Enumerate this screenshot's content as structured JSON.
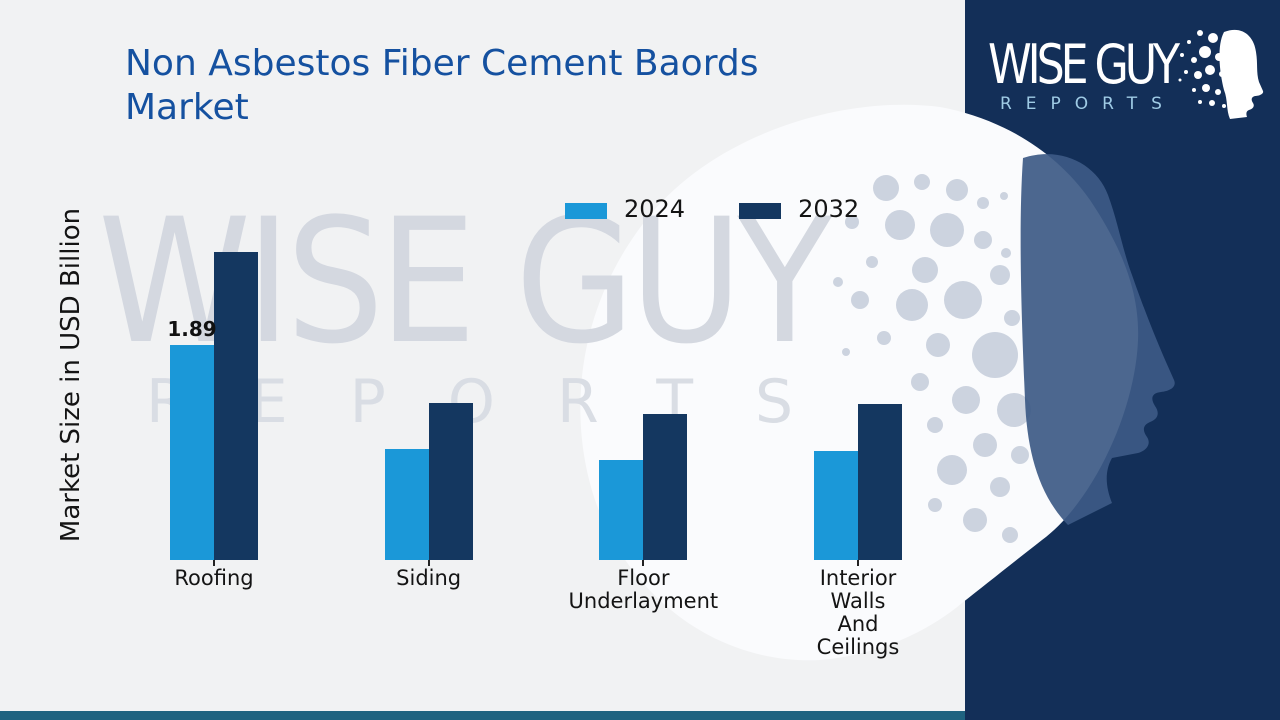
{
  "title": {
    "line1": "Non Asbestos Fiber Cement Baords",
    "line2": "Market"
  },
  "logo": {
    "brand": "WISE GUY",
    "sub": "REPORTS"
  },
  "watermark": {
    "brand": "WISE GUY",
    "sub": "REPORTS"
  },
  "colors": {
    "title_blue": "#1551a0",
    "bar_2024": "#1b98d8",
    "bar_2032": "#143760",
    "panel_navy": "#132f58",
    "teal_strip": "#1f6380",
    "logo_sub_blue": "#9fcbe5",
    "background": "#f1f2f3"
  },
  "chart_data": {
    "type": "bar",
    "title": "Non Asbestos Fiber Cement Baords Market",
    "xlabel": "",
    "ylabel": "Market Size in USD Billion",
    "ylim": [
      0,
      3
    ],
    "grid": false,
    "legend_position": "top",
    "categories": [
      "Roofing",
      "Siding",
      "Floor Underlayment",
      "Interior Walls And Ceilings"
    ],
    "category_label_lines": [
      [
        "Roofing"
      ],
      [
        "Siding"
      ],
      [
        "Floor",
        "Underlayment"
      ],
      [
        "Interior",
        "Walls",
        "And",
        "Ceilings"
      ]
    ],
    "series": [
      {
        "name": "2024",
        "color": "#1b98d8",
        "values": [
          1.89,
          0.98,
          0.88,
          0.96
        ]
      },
      {
        "name": "2032",
        "color": "#143760",
        "values": [
          2.71,
          1.38,
          1.28,
          1.37
        ]
      }
    ],
    "annotations": [
      {
        "text": "1.89",
        "series_index": 0,
        "category_index": 0
      }
    ]
  }
}
